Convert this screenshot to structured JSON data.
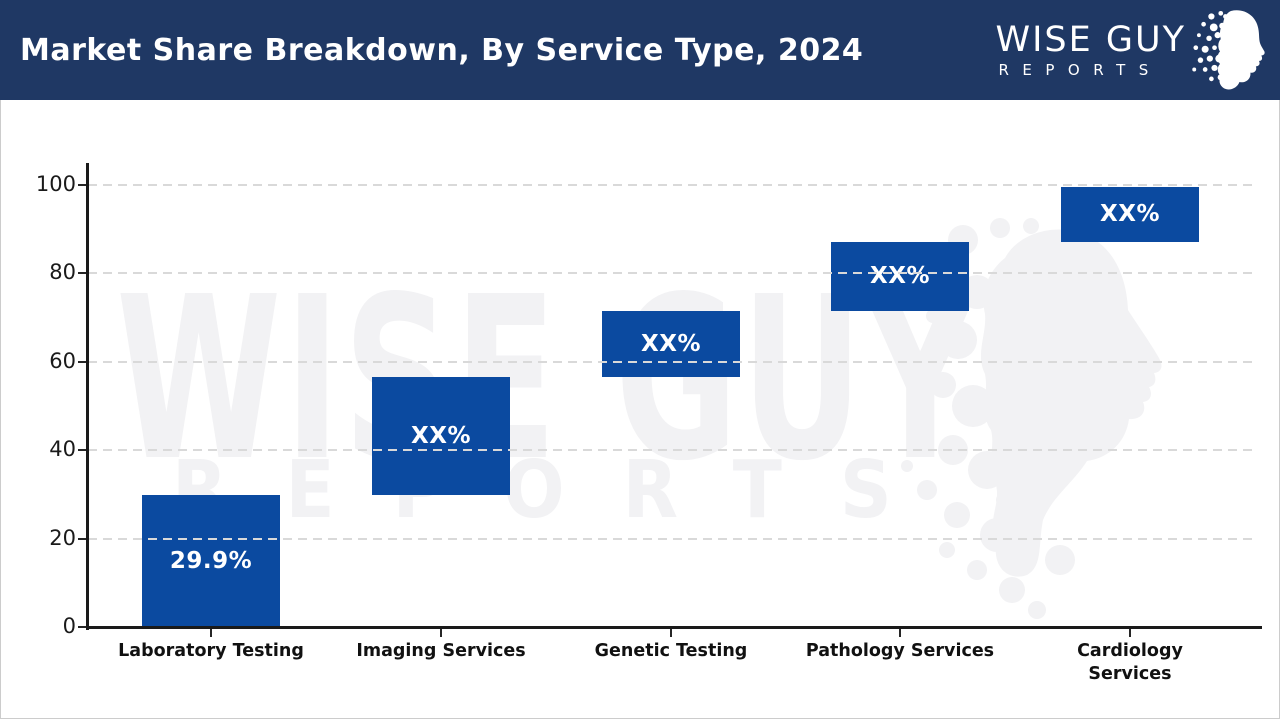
{
  "header": {
    "title": "Market Share Breakdown, By Service Type, 2024",
    "logo": {
      "line1": "WISE GUY",
      "line2": "REPORTS"
    }
  },
  "watermark": {
    "line1": "WISE GUY",
    "line2": "REPORTS"
  },
  "colors": {
    "header_bg": "#1f3864",
    "bar": "#0b4aa0",
    "bar_label": "#ffffff",
    "axis": "#1a1a1a",
    "gridline": "#d9d9d9",
    "watermark": "#f2f2f4",
    "title_text": "#ffffff",
    "category_text": "#111111"
  },
  "chart_data": {
    "type": "bar",
    "subtype": "waterfall",
    "title": "Market Share Breakdown, By Service Type, 2024",
    "categories": [
      "Laboratory Testing",
      "Imaging Services",
      "Genetic Testing",
      "Pathology Services",
      "Cardiology\nServices"
    ],
    "segments": [
      {
        "category": "Laboratory Testing",
        "start": 0,
        "end": 29.9,
        "label": "29.9%"
      },
      {
        "category": "Imaging Services",
        "start": 29.9,
        "end": 56.6,
        "label": "XX%"
      },
      {
        "category": "Genetic Testing",
        "start": 56.6,
        "end": 71.5,
        "label": "XX%"
      },
      {
        "category": "Pathology Services",
        "start": 71.5,
        "end": 87.1,
        "label": "XX%"
      },
      {
        "category": "Cardiology Services",
        "start": 87.1,
        "end": 99.6,
        "label": "XX%"
      }
    ],
    "increments_estimated": [
      29.9,
      26.7,
      14.9,
      15.6,
      12.5
    ],
    "xlabel": "",
    "ylabel": "",
    "ylim": [
      0,
      100
    ],
    "yticks": [
      0,
      20,
      40,
      60,
      80,
      100
    ],
    "grid": "horizontal-dashed",
    "legend": "none",
    "bar_color": "#0b4aa0",
    "label_color": "#ffffff"
  }
}
